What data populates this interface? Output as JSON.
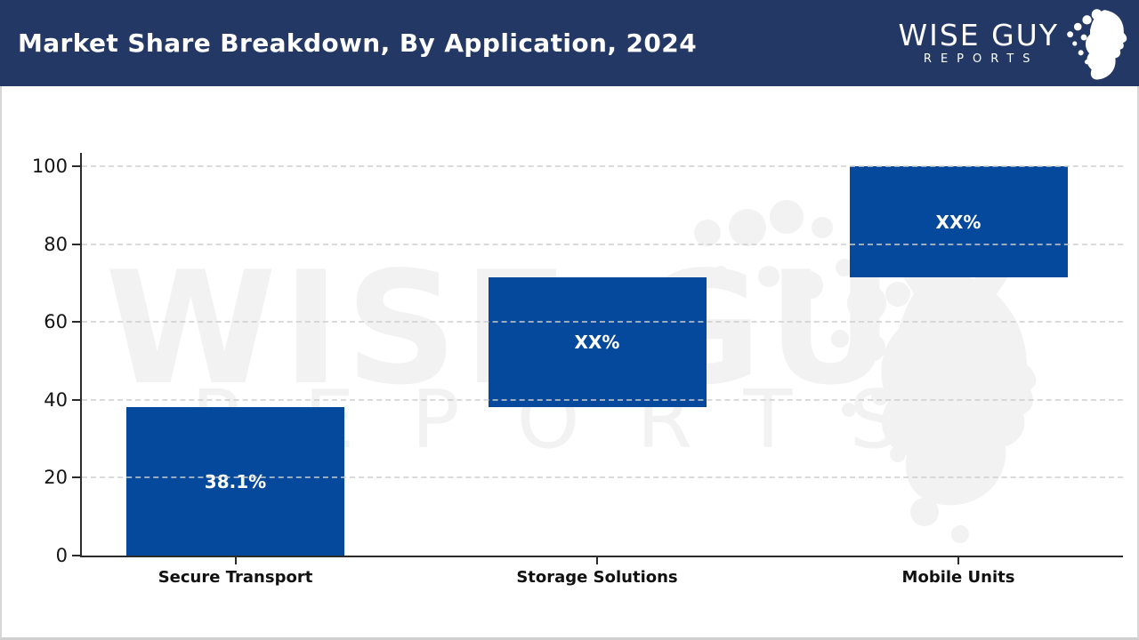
{
  "header": {
    "title": "Market Share Breakdown, By Application, 2024",
    "logo": {
      "line1": "WISE GUY",
      "line2": "REPORTS"
    }
  },
  "watermark": {
    "line1": "WISE GUY",
    "line2": "REPORTS"
  },
  "chart_data": {
    "type": "bar",
    "subtype": "waterfall-percentage-breakdown",
    "title": "Market Share Breakdown, By Application, 2024",
    "categories": [
      "Secure Transport",
      "Storage Solutions",
      "Mobile Units"
    ],
    "segments": [
      {
        "category": "Secure Transport",
        "start": 0,
        "end": 38.1,
        "label": "38.1%"
      },
      {
        "category": "Storage Solutions",
        "start": 38.1,
        "end": 71.4,
        "label": "XX%"
      },
      {
        "category": "Mobile Units",
        "start": 71.4,
        "end": 100,
        "label": "XX%"
      }
    ],
    "xlabel": "",
    "ylabel": "",
    "ylim": [
      0,
      100
    ],
    "yticks": [
      0,
      20,
      40,
      60,
      80,
      100
    ],
    "grid": "horizontal-dashed",
    "legend": "none",
    "colors": {
      "bar": "#04499c",
      "bar_label": "#ffffff",
      "axis": "#2b2b2b",
      "tick_label": "#141414",
      "header_bg": "#233864",
      "header_text": "#ffffff",
      "watermark": "#f2f2f2"
    }
  }
}
